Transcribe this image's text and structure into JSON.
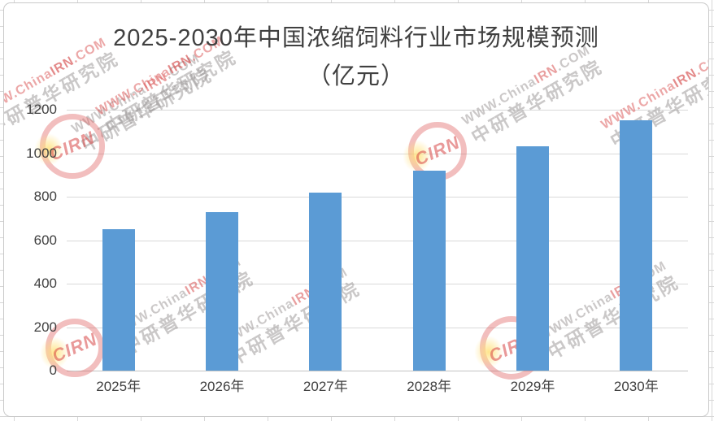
{
  "chart_data": {
    "type": "bar",
    "title_line1": "2025-2030年中国浓缩饲料行业市场规模预测",
    "title_line2": "（亿元）",
    "categories": [
      "2025年",
      "2026年",
      "2027年",
      "2028年",
      "2029年",
      "2030年"
    ],
    "values": [
      650,
      730,
      820,
      920,
      1030,
      1150
    ],
    "xlabel": "",
    "ylabel": "",
    "ylim": [
      0,
      1200
    ],
    "yticks": [
      0,
      200,
      400,
      600,
      800,
      1000,
      1200
    ],
    "grid": true,
    "legend": false,
    "bar_color": "#5B9BD5",
    "gridline_color": "#D9D9D9",
    "axis_text_color": "#404040",
    "title_color": "#404040"
  },
  "watermark": {
    "url_pre": "WWW.China",
    "url_mid": "IRN",
    "url_post": ".COM",
    "cn_text": "中研普华研究院",
    "logo_text": "CIRN",
    "gray_color": "#b8b4b4",
    "red_color": "#e2807f"
  }
}
